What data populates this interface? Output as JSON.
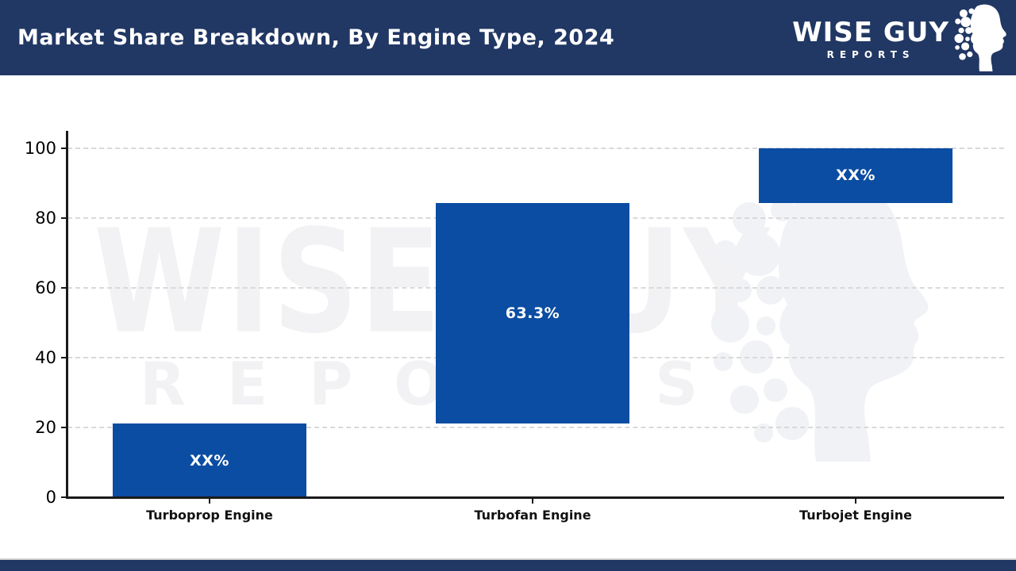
{
  "header": {
    "title": "Market Share Breakdown, By Engine Type, 2024",
    "logo_line1": "WISE GUY",
    "logo_line2": "REPORTS"
  },
  "watermark": {
    "line1": "WISE GUY",
    "line2": "R E P O R T S"
  },
  "colors": {
    "header_bg": "#213764",
    "footer_bg": "#213764",
    "bar": "#0b4da2",
    "grid": "#d9d9d9",
    "axis": "#1a1a1a",
    "watermark": "#f2f2f4"
  },
  "chart_data": {
    "type": "bar",
    "variant": "waterfall-stacked",
    "title": "Market Share Breakdown, By Engine Type, 2024",
    "categories": [
      "Turboprop Engine",
      "Turbofan Engine",
      "Turbojet Engine"
    ],
    "bars": [
      {
        "category": "Turboprop Engine",
        "base": 0,
        "top": 21.1,
        "label": "XX%"
      },
      {
        "category": "Turbofan Engine",
        "base": 21.1,
        "top": 84.4,
        "label": "63.3%"
      },
      {
        "category": "Turbojet Engine",
        "base": 84.4,
        "top": 100,
        "label": "XX%"
      }
    ],
    "values_shown": [
      "XX%",
      "63.3%",
      "XX%"
    ],
    "yticks": [
      0,
      20,
      40,
      60,
      80,
      100
    ],
    "ylim": [
      0,
      105
    ],
    "grid": "horizontal-dashed",
    "legend": "none",
    "xlabel": "",
    "ylabel": ""
  }
}
